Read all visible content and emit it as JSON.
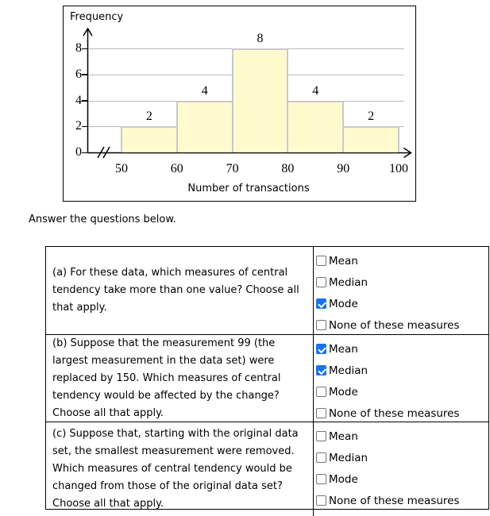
{
  "chart_data": {
    "type": "bar",
    "title": "",
    "ylabel": "Frequency",
    "xlabel": "Number of transactions",
    "categories": [
      "50-60",
      "60-70",
      "70-80",
      "80-90",
      "90-100"
    ],
    "values": [
      2,
      4,
      8,
      4,
      2
    ],
    "bar_labels": [
      "2",
      "4",
      "8",
      "4",
      "2"
    ],
    "x_ticks": [
      "50",
      "60",
      "70",
      "80",
      "90",
      "100"
    ],
    "y_ticks": [
      "0",
      "2",
      "4",
      "6",
      "8"
    ],
    "ylim": [
      0,
      9.5
    ],
    "grid": true,
    "axis_break": true,
    "legend": "none",
    "bar_fill": "#fffbce",
    "bar_border": "#c9c9c9",
    "grid_color": "#bbbbbb"
  },
  "instruction": "Answer the questions below.",
  "colors": {
    "checkbox_checked": "#1a73e8",
    "table_border": "#000000"
  },
  "table": {
    "rows": [
      {
        "question": "(a) For these data, which measures of central tendency take more than one value? Choose all that apply.",
        "options": [
          {
            "label": "Mean",
            "checked": false
          },
          {
            "label": "Median",
            "checked": false
          },
          {
            "label": "Mode",
            "checked": true
          },
          {
            "label": "None of these measures",
            "checked": false
          }
        ]
      },
      {
        "question": "(b) Suppose that the measurement 99 (the largest measurement in the data set) were replaced by 150. Which measures of central tendency would be affected by the change? Choose all that apply.",
        "options": [
          {
            "label": "Mean",
            "checked": true
          },
          {
            "label": "Median",
            "checked": true
          },
          {
            "label": "Mode",
            "checked": false
          },
          {
            "label": "None of these measures",
            "checked": false
          }
        ]
      },
      {
        "question": "(c) Suppose that, starting with the original data set, the smallest measurement were removed. Which measures of central tendency would be changed from those of the original data set? Choose all that apply.",
        "options": [
          {
            "label": "Mean",
            "checked": false
          },
          {
            "label": "Median",
            "checked": false
          },
          {
            "label": "Mode",
            "checked": false
          },
          {
            "label": "None of these measures",
            "checked": false
          }
        ]
      }
    ]
  }
}
